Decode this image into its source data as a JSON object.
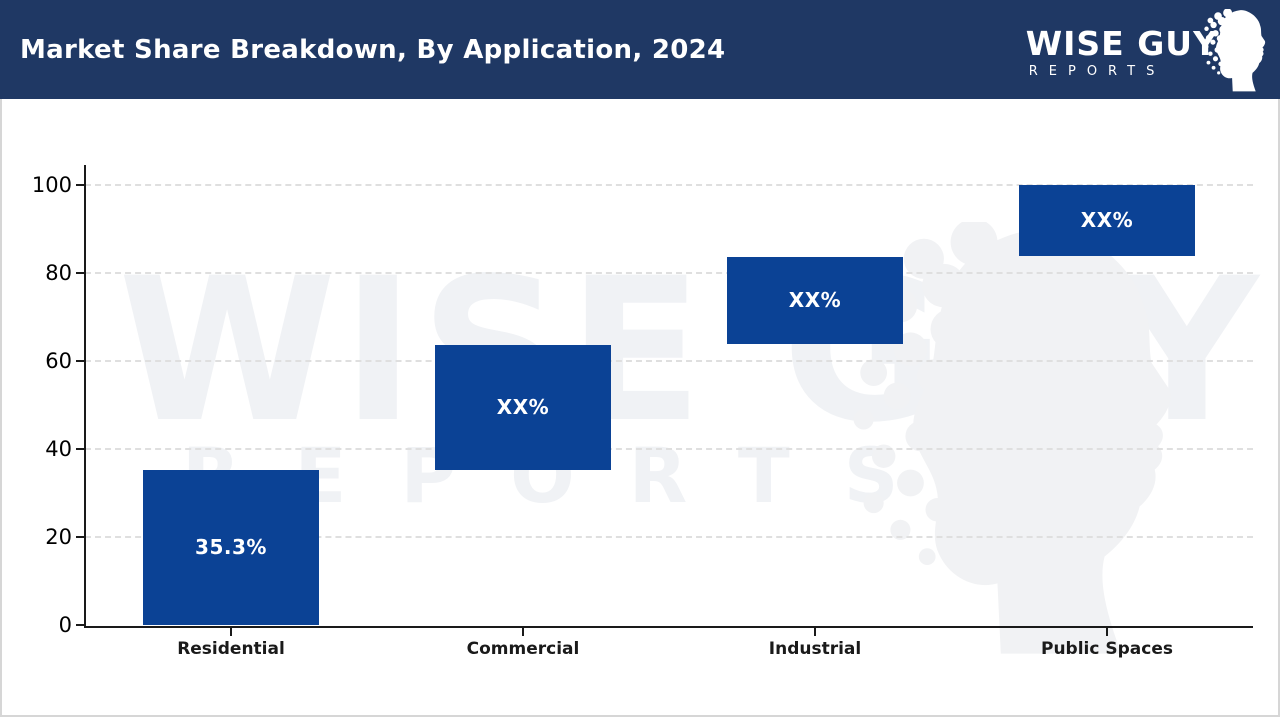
{
  "header": {
    "title": "Market Share Breakdown, By Application, 2024",
    "bg_color": "#1F3864",
    "logo": {
      "wordmark": "WISE GUY",
      "subtext": "REPORTS"
    }
  },
  "watermark": {
    "line1": "WISE GUY",
    "line2": "REPORTS"
  },
  "chart_data": {
    "type": "bar",
    "subtype": "floating_segment_breakdown",
    "title": "Market Share Breakdown, By Application, 2024",
    "categories": [
      "Residential",
      "Commercial",
      "Industrial",
      "Public Spaces"
    ],
    "segments": [
      {
        "category": "Residential",
        "start": 0,
        "end": 35.3,
        "label": "35.3%"
      },
      {
        "category": "Commercial",
        "start": 35.3,
        "end": 63.7,
        "label": "XX%"
      },
      {
        "category": "Industrial",
        "start": 63.9,
        "end": 83.7,
        "label": "XX%"
      },
      {
        "category": "Public Spaces",
        "start": 83.9,
        "end": 100,
        "label": "XX%"
      }
    ],
    "xlabel": "",
    "ylabel": "",
    "yticks": [
      0,
      20,
      40,
      60,
      80,
      100
    ],
    "ylim": [
      0,
      104.5
    ],
    "grid": "horizontal-dashed",
    "legend": "none",
    "bar_color": "#0B4295",
    "bar_label_color": "#FFFFFF",
    "axis_color": "#1A1A1A",
    "gridline_color": "#DFDFDF"
  }
}
